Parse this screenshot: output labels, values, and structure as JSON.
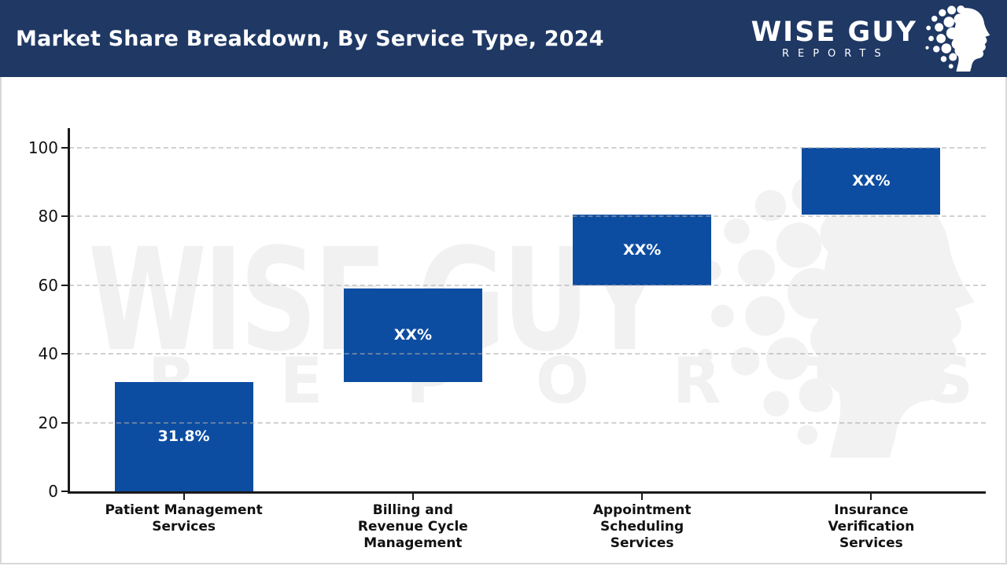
{
  "header": {
    "title": "Market Share Breakdown, By Service Type, 2024",
    "logo": {
      "name": "WISE GUY",
      "sub": "REPORTS"
    }
  },
  "watermark": {
    "name": "WISE GUY",
    "sub": "REPORTS"
  },
  "chart_data": {
    "type": "bar",
    "subtype": "waterfall",
    "title": "Market Share Breakdown, By Service Type, 2024",
    "xlabel": "",
    "ylabel": "",
    "ylim": [
      0,
      105
    ],
    "yticks": [
      0,
      20,
      40,
      60,
      80,
      100
    ],
    "grid": "horizontal-dashed",
    "legend": "none",
    "bar_color": "#0d4da1",
    "bar_label_color": "#ffffff",
    "categories": [
      "Patient Management Services",
      "Billing and Revenue Cycle Management",
      "Appointment Scheduling Services",
      "Insurance Verification Services"
    ],
    "category_label_lines": [
      [
        "Patient Management",
        "Services"
      ],
      [
        "Billing and",
        "Revenue Cycle",
        "Management"
      ],
      [
        "Appointment",
        "Scheduling",
        "Services"
      ],
      [
        "Insurance",
        "Verification",
        "Services"
      ]
    ],
    "segments": [
      {
        "category": "Patient Management Services",
        "start": 0,
        "end": 31.8,
        "label": "31.8%"
      },
      {
        "category": "Billing and Revenue Cycle Management",
        "start": 31.8,
        "end": 59,
        "label": "XX%"
      },
      {
        "category": "Appointment Scheduling Services",
        "start": 60,
        "end": 80.5,
        "label": "XX%"
      },
      {
        "category": "Insurance Verification Services",
        "start": 80.5,
        "end": 100,
        "label": "XX%"
      }
    ]
  },
  "colors": {
    "header_bg": "#1f3864",
    "bar": "#0d4da1",
    "axis": "#1a1a1a",
    "gridline": "#acacac",
    "watermark": "#f1f1f1",
    "frame": "#d8d8d8"
  }
}
